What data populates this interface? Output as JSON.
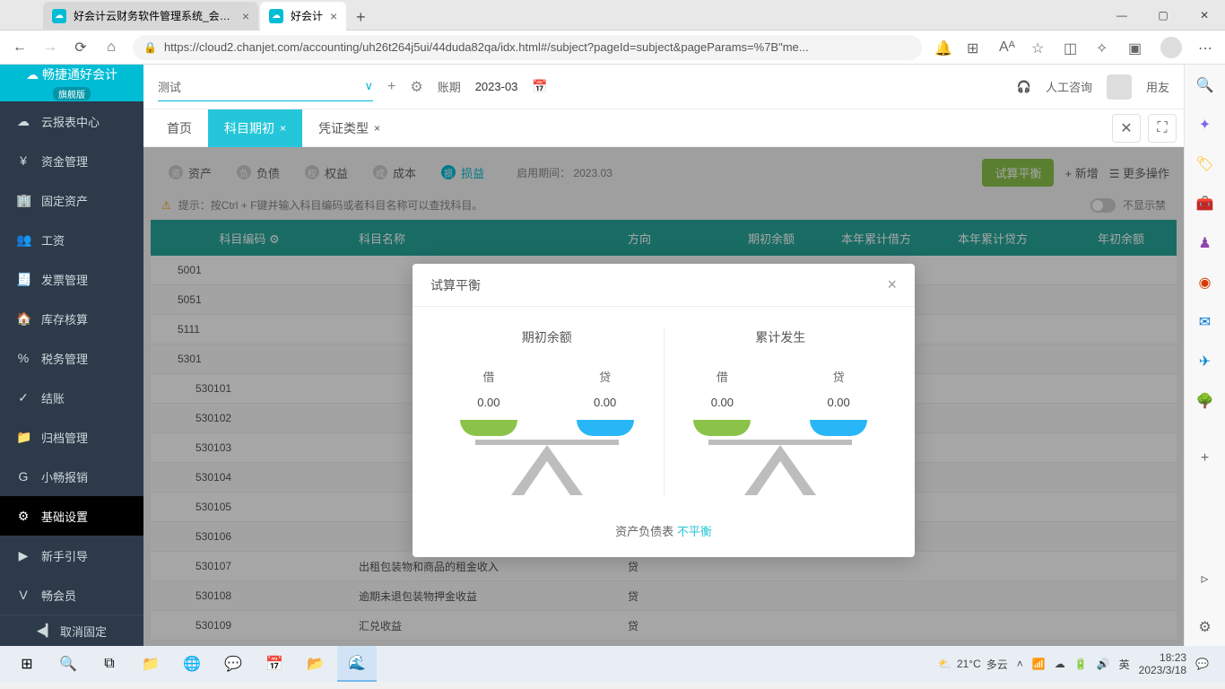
{
  "browser": {
    "tabs": [
      {
        "title": "好会计云财务软件管理系统_会计...",
        "active": false
      },
      {
        "title": "好会计",
        "active": true
      }
    ],
    "url": "https://cloud2.chanjet.com/accounting/uh26t264j5ui/44duda82qa/idx.html#/subject?pageId=subject&pageParams=%7B\"me..."
  },
  "sidebar": {
    "logo": "畅捷通好会计",
    "edition": "旗舰版",
    "items": [
      {
        "label": "云报表中心",
        "icon": "☁"
      },
      {
        "label": "资金管理",
        "icon": "¥"
      },
      {
        "label": "固定资产",
        "icon": "🏢"
      },
      {
        "label": "工资",
        "icon": "👥"
      },
      {
        "label": "发票管理",
        "icon": "🧾"
      },
      {
        "label": "库存核算",
        "icon": "🏠"
      },
      {
        "label": "税务管理",
        "icon": "%"
      },
      {
        "label": "结账",
        "icon": "✓"
      },
      {
        "label": "归档管理",
        "icon": "📁"
      },
      {
        "label": "小畅报销",
        "icon": "G"
      },
      {
        "label": "基础设置",
        "icon": "⚙",
        "active": true
      },
      {
        "label": "新手引导",
        "icon": "▶"
      },
      {
        "label": "畅会员",
        "icon": "V"
      }
    ],
    "footer": "取消固定"
  },
  "topbar": {
    "company": "测试",
    "period_label": "账期",
    "period_value": "2023-03",
    "consult": "人工咨询",
    "user": "用友"
  },
  "tabs": {
    "items": [
      {
        "label": "首页",
        "closable": false
      },
      {
        "label": "科目期初",
        "closable": true,
        "active": true
      },
      {
        "label": "凭证类型",
        "closable": true
      }
    ]
  },
  "categories": {
    "items": [
      {
        "label": "资产",
        "icon": "资"
      },
      {
        "label": "负债",
        "icon": "负"
      },
      {
        "label": "权益",
        "icon": "权"
      },
      {
        "label": "成本",
        "icon": "成"
      },
      {
        "label": "损益",
        "icon": "损",
        "active": true
      }
    ],
    "enable_label": "启用期间：",
    "enable_value": "2023.03",
    "btn_trial": "试算平衡",
    "btn_add": "+ 新增",
    "btn_more": "更多操作"
  },
  "tip": {
    "text": "提示：按Ctrl + F键并输入科目编码或者科目名称可以查找科目。",
    "toggle_label": "不显示禁"
  },
  "table": {
    "headers": [
      "科目编码",
      "科目名称",
      "方向",
      "期初余额",
      "本年累计借方",
      "本年累计贷方",
      "年初余额"
    ],
    "rows": [
      {
        "code": "5001",
        "indent": false
      },
      {
        "code": "5051",
        "indent": false
      },
      {
        "code": "5111",
        "indent": false
      },
      {
        "code": "5301",
        "indent": false
      },
      {
        "code": "530101",
        "indent": true
      },
      {
        "code": "530102",
        "indent": true
      },
      {
        "code": "530103",
        "indent": true
      },
      {
        "code": "530104",
        "indent": true
      },
      {
        "code": "530105",
        "indent": true
      },
      {
        "code": "530106",
        "indent": true
      },
      {
        "code": "530107",
        "indent": true,
        "name": "出租包装物和商品的租金收入",
        "dir": "贷"
      },
      {
        "code": "530108",
        "indent": true,
        "name": "逾期未退包装物押金收益",
        "dir": "贷"
      },
      {
        "code": "530109",
        "indent": true,
        "name": "汇兑收益",
        "dir": "贷"
      }
    ]
  },
  "modal": {
    "title": "试算平衡",
    "left_title": "期初余额",
    "right_title": "累计发生",
    "debit_label": "借",
    "credit_label": "贷",
    "debit_value": "0.00",
    "credit_value": "0.00",
    "footer_text": "资产负债表",
    "footer_link": "不平衡",
    "colors": {
      "debit_bowl": "#8bc34a",
      "credit_bowl": "#29b6f6",
      "stand": "#bdbdbd"
    }
  },
  "taskbar": {
    "weather_temp": "21°C",
    "weather_desc": "多云",
    "ime": "英",
    "time": "18:23",
    "date": "2023/3/18"
  }
}
